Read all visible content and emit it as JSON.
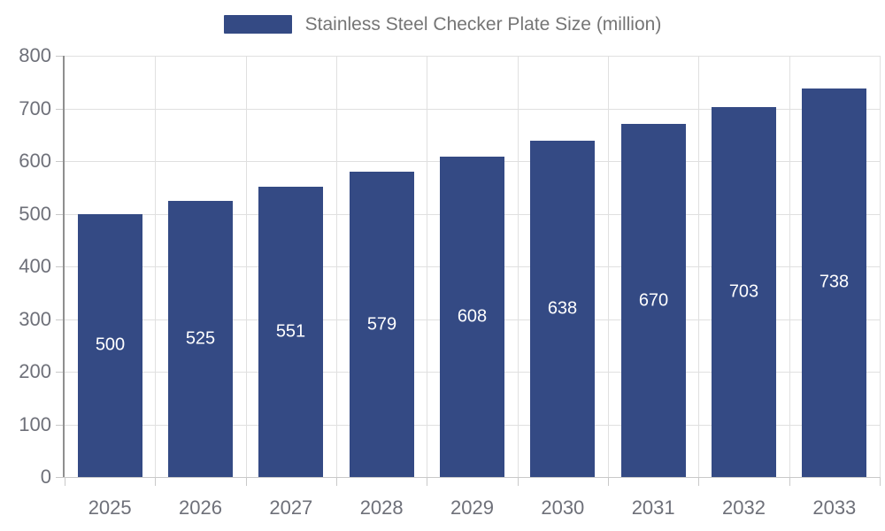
{
  "legend": {
    "label": "Stainless Steel Checker Plate Size (million)",
    "swatch_color": "#344a84"
  },
  "colors": {
    "bar": "#344a84",
    "value_label": "#ffffff",
    "axis_label": "#6e7079",
    "legend_label": "#757575",
    "grid": "#e0e0e0",
    "y_axis_line": "#8f8f8f",
    "tick": "#c9c9c9",
    "background": "#ffffff"
  },
  "chart_data": {
    "type": "bar",
    "title": "Stainless Steel Checker Plate Size (million)",
    "categories": [
      "2025",
      "2026",
      "2027",
      "2028",
      "2029",
      "2030",
      "2031",
      "2032",
      "2033"
    ],
    "values": [
      500,
      525,
      551,
      579,
      608,
      638,
      670,
      703,
      738
    ],
    "xlabel": "",
    "ylabel": "",
    "ylim": [
      0,
      800
    ],
    "yticks": [
      0,
      100,
      200,
      300,
      400,
      500,
      600,
      700,
      800
    ],
    "grid": true,
    "legend_position": "top",
    "value_label_position": "inside-center"
  }
}
